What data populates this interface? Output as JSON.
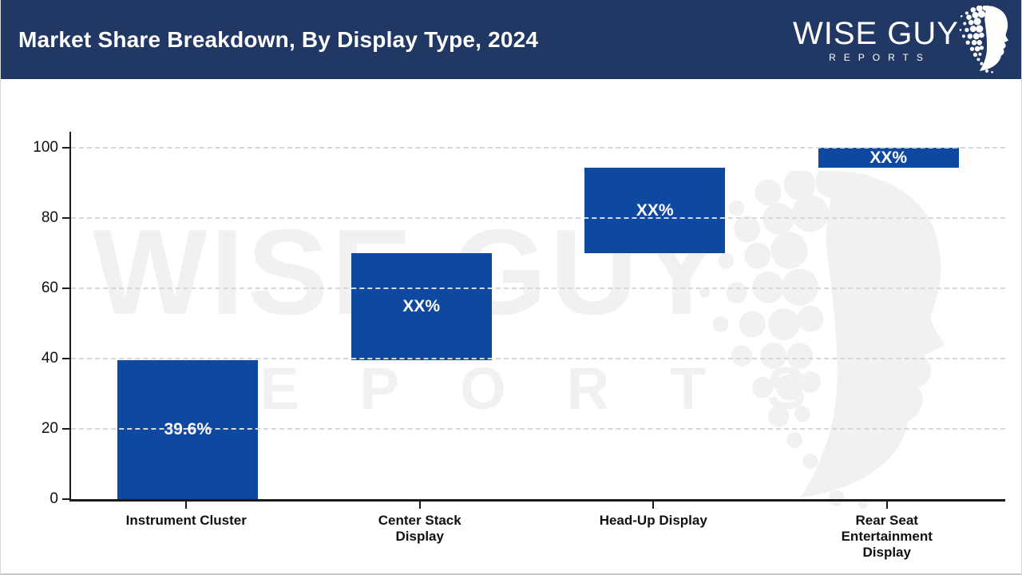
{
  "header": {
    "title": "Market Share Breakdown, By Display Type, 2024",
    "bg_color": "#213864",
    "logo": {
      "brand": "WISE GUY",
      "sub": "REPORTS"
    }
  },
  "watermark": {
    "brand": "WISE GUY",
    "sub": "REPORTS"
  },
  "chart_data": {
    "type": "bar",
    "subtype": "waterfall-cumulative-share",
    "title": "Market Share Breakdown, By Display Type, 2024",
    "categories": [
      "Instrument Cluster",
      "Center Stack\nDisplay",
      "Head-Up Display",
      "Rear Seat\nEntertainment\nDisplay"
    ],
    "segments": [
      {
        "category": "Instrument Cluster",
        "label": "39.6%",
        "start": 0,
        "end": 39.6
      },
      {
        "category": "Center Stack Display",
        "label": "XX%",
        "start": 39.6,
        "end": 70.0
      },
      {
        "category": "Head-Up Display",
        "label": "XX%",
        "start": 70.0,
        "end": 94.3
      },
      {
        "category": "Rear Seat Entertainment Display",
        "label": "XX%",
        "start": 94.3,
        "end": 100.0
      }
    ],
    "xlabel": "",
    "ylabel": "",
    "ylim": [
      0,
      105
    ],
    "yticks": [
      0,
      20,
      40,
      60,
      80,
      100
    ],
    "grid": "horizontal-dashed-over-bars",
    "legend": "none",
    "bar_color": "#0E48A0",
    "bar_label_color": "#FFFFFF"
  }
}
